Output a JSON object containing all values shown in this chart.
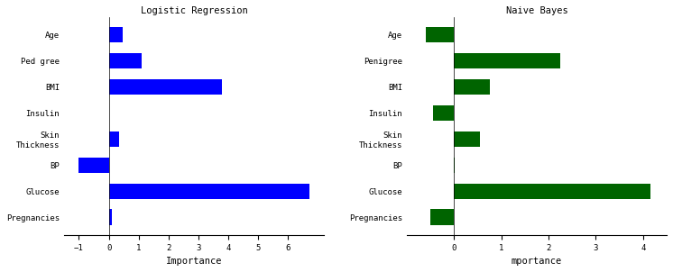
{
  "left": {
    "title": "Logistic Regression",
    "categories": [
      "Age",
      "Ped gree",
      "BMI",
      "Insulin",
      "Skin\nThickness",
      "BP",
      "Glucose",
      "Pregnancies"
    ],
    "values": [
      0.45,
      1.1,
      3.8,
      0.0,
      0.35,
      -1.0,
      6.7,
      0.1
    ],
    "color": "#0000ff",
    "xlabel": "Importance",
    "xlim": [
      -1.5,
      7.2
    ],
    "xticks": [
      -1,
      0,
      1,
      2,
      3,
      4,
      5,
      6
    ]
  },
  "right": {
    "title": "Naive Bayes",
    "categories": [
      "Age",
      "Penigree",
      "BMI",
      "Insulin",
      "Skin\nThickness",
      "BP",
      "Glucose",
      "Pregnancies"
    ],
    "values": [
      -0.6,
      2.25,
      0.75,
      -0.45,
      0.55,
      0.02,
      4.15,
      -0.5
    ],
    "color": "#006400",
    "xlabel": "mportance",
    "xlim": [
      -1.0,
      4.5
    ],
    "xticks": [
      0,
      1,
      2,
      3,
      4
    ]
  }
}
